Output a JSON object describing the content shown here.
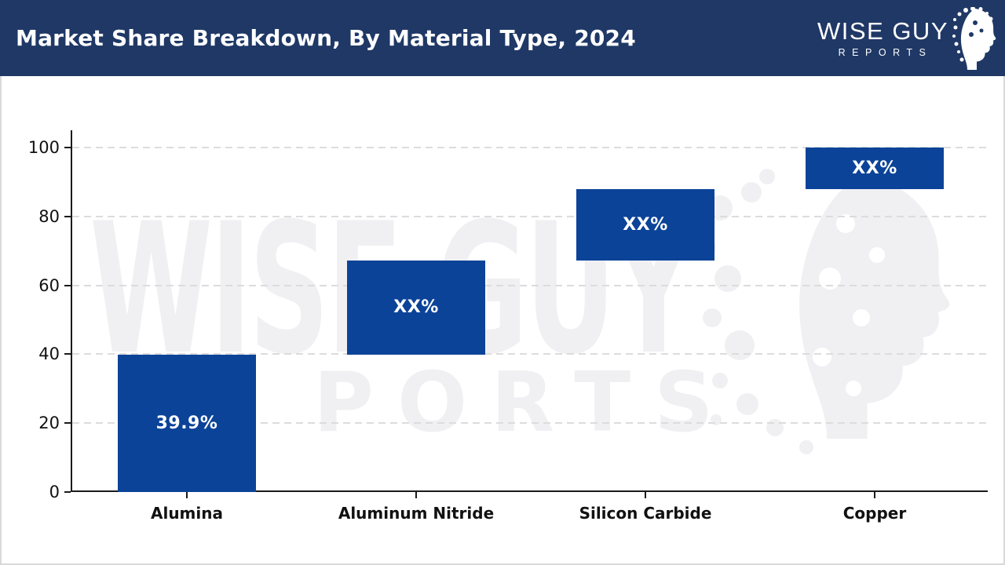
{
  "header": {
    "title": "Market Share Breakdown, By Material Type, 2024",
    "logo": {
      "name_top": "WISE GUY",
      "name_bottom": "REPORTS"
    }
  },
  "watermark": {
    "line1": "WISE GUY",
    "line2": "PORTS"
  },
  "colors": {
    "header_bg": "#1f3866",
    "bar": "#0b4398",
    "axis": "#1a1a1a",
    "gridline": "#dcdcdc",
    "watermark": "#f0f0f3",
    "text": "#111111",
    "border": "#d9d9d9",
    "bar_label": "#ffffff"
  },
  "chart_data": {
    "type": "bar",
    "subtype": "waterfall",
    "title": "Market Share Breakdown, By Material Type, 2024",
    "categories": [
      "Alumina",
      "Aluminum Nitride",
      "Silicon Carbide",
      "Copper"
    ],
    "values": [
      39.9,
      27.4,
      20.7,
      12.0
    ],
    "segments": [
      {
        "category": "Alumina",
        "start": 0,
        "end": 39.9,
        "label": "39.9%"
      },
      {
        "category": "Aluminum Nitride",
        "start": 39.9,
        "end": 67.3,
        "label": "XX%"
      },
      {
        "category": "Silicon Carbide",
        "start": 67.3,
        "end": 88.0,
        "label": "XX%"
      },
      {
        "category": "Copper",
        "start": 88.0,
        "end": 100.0,
        "label": "XX%"
      }
    ],
    "xlabel": "",
    "ylabel": "",
    "yticks": [
      0,
      20,
      40,
      60,
      80,
      100
    ],
    "ylim": [
      0,
      105
    ],
    "grid": "horizontal-dashed",
    "legend": "none"
  }
}
